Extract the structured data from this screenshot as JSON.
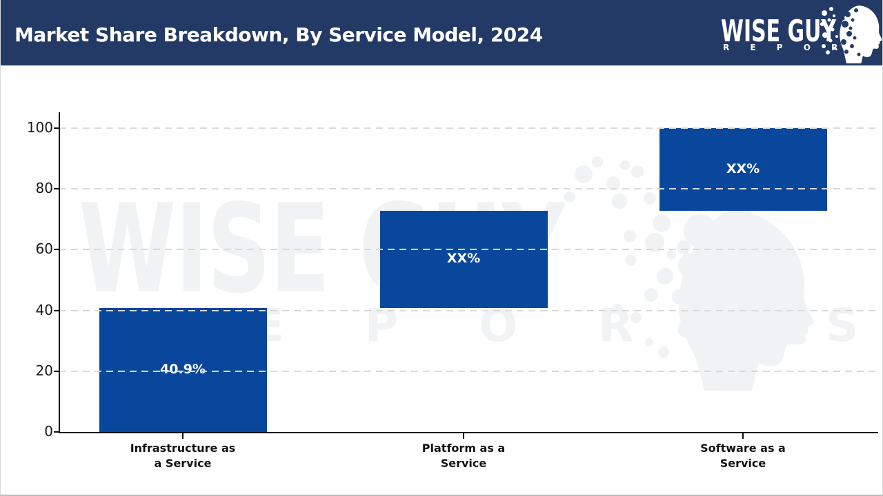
{
  "header": {
    "title": "Market Share Breakdown, By Service Model, 2024"
  },
  "logo": {
    "line1": "WISE GUY",
    "line2": "R E P O R T S",
    "head_icon": "dotted-head-profile"
  },
  "watermark": {
    "line1": "WISE GUY",
    "line2": "R E P O R T S"
  },
  "colors": {
    "header_bg": "#233a66",
    "bar": "#09479d",
    "bar_label": "#ffffff",
    "gridline": "#d9d9d9",
    "axis": "#111111",
    "watermark": "#f1f2f4"
  },
  "chart_data": {
    "type": "bar",
    "subtype": "waterfall",
    "title": "Market Share Breakdown, By Service Model, 2024",
    "xlabel": "",
    "ylabel": "",
    "ylim": [
      0,
      105
    ],
    "yticks": [
      0,
      20,
      40,
      60,
      80,
      100
    ],
    "grid": "horizontal-dashed",
    "legend": "none",
    "categories": [
      [
        "Infrastructure as",
        "a Service"
      ],
      [
        "Platform as a",
        "Service"
      ],
      [
        "Software as a",
        "Service"
      ]
    ],
    "segments": [
      {
        "category": "Infrastructure as a Service",
        "start": 0,
        "end": 40.9,
        "label": "40.9%"
      },
      {
        "category": "Platform as a Service",
        "start": 40.9,
        "end": 72.8,
        "label": "XX%"
      },
      {
        "category": "Software as a Service",
        "start": 72.8,
        "end": 100,
        "label": "XX%"
      }
    ]
  }
}
